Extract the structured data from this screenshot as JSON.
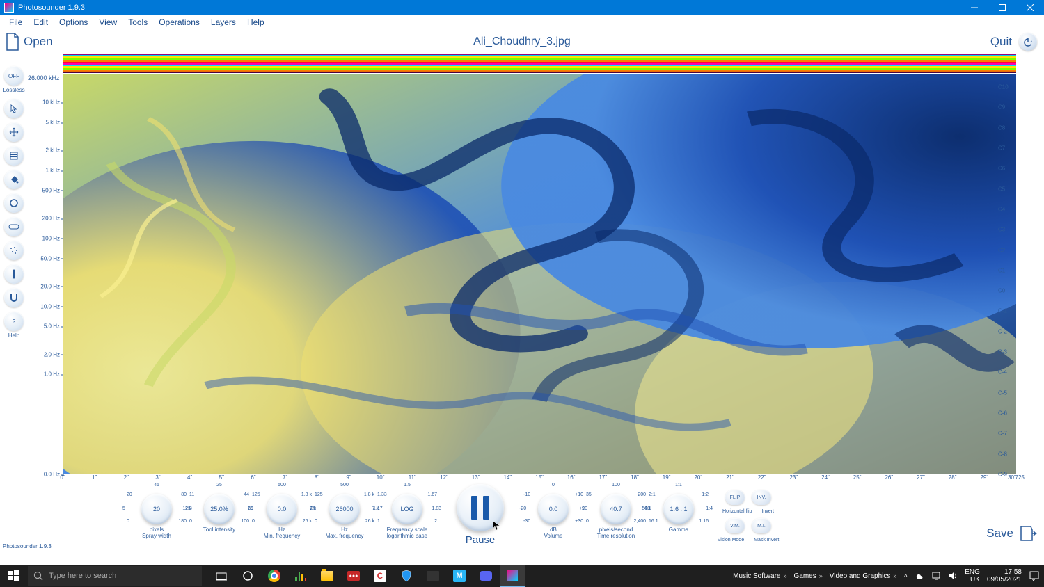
{
  "window": {
    "title": "Photosounder 1.9.3",
    "accent_color": "#0078d7"
  },
  "menu": [
    "File",
    "Edit",
    "Options",
    "View",
    "Tools",
    "Operations",
    "Layers",
    "Help"
  ],
  "topbar": {
    "open_label": "Open",
    "filename": "Ali_Choudhry_3.jpg",
    "quit_label": "Quit"
  },
  "left_tools": [
    {
      "id": "off",
      "label": "OFF",
      "sublabel": "Lossless"
    },
    {
      "id": "pointer",
      "icon": "pointer"
    },
    {
      "id": "move",
      "icon": "move"
    },
    {
      "id": "grid",
      "icon": "grid"
    },
    {
      "id": "fill",
      "icon": "fill"
    },
    {
      "id": "circle",
      "icon": "circle"
    },
    {
      "id": "erase",
      "icon": "erase"
    },
    {
      "id": "noise",
      "icon": "noise"
    },
    {
      "id": "line",
      "icon": "line"
    },
    {
      "id": "magnet",
      "icon": "magnet"
    },
    {
      "id": "help",
      "label": "?",
      "sublabel": "Help"
    }
  ],
  "freq_top_label": "26.000 kHz",
  "yaxis_left": [
    {
      "label": "10 kHz",
      "pct": 7
    },
    {
      "label": "5 kHz",
      "pct": 12
    },
    {
      "label": "2 kHz",
      "pct": 19
    },
    {
      "label": "1 kHz",
      "pct": 24
    },
    {
      "label": "500 Hz",
      "pct": 29
    },
    {
      "label": "200 Hz",
      "pct": 36
    },
    {
      "label": "100 Hz",
      "pct": 41
    },
    {
      "label": "50.0 Hz",
      "pct": 46
    },
    {
      "label": "20.0 Hz",
      "pct": 53
    },
    {
      "label": "10.0 Hz",
      "pct": 58
    },
    {
      "label": "5.0 Hz",
      "pct": 63
    },
    {
      "label": "2.0 Hz",
      "pct": 70
    },
    {
      "label": "1.0 Hz",
      "pct": 75
    },
    {
      "label": "0.0 Hz",
      "pct": 100
    }
  ],
  "yaxis_right": [
    "C10",
    "C9",
    "C8",
    "C7",
    "C6",
    "C5",
    "C4",
    "C3",
    "C2",
    "C1",
    "C0",
    "C-1",
    "C-2",
    "C-3",
    "C-4",
    "C-5",
    "C-6",
    "C-7",
    "C-8",
    "C-9"
  ],
  "xaxis": {
    "start": 0,
    "end_label": "30'725",
    "ticks": [
      "0\"",
      "1\"",
      "2\"",
      "3\"",
      "4\"",
      "5\"",
      "6\"",
      "7\"",
      "8\"",
      "9\"",
      "10\"",
      "11\"",
      "12\"",
      "13\"",
      "14\"",
      "15\"",
      "16\"",
      "17\"",
      "18\"",
      "19\"",
      "20\"",
      "21\"",
      "22\"",
      "23\"",
      "24\"",
      "25\"",
      "26\"",
      "27\"",
      "28\"",
      "29\""
    ]
  },
  "playhead_pct": 24,
  "knobs": [
    {
      "id": "spray",
      "value": "20",
      "subline1": "pixels",
      "subline2": "Spray width",
      "ticks": {
        "tl": "20",
        "t": "45",
        "tr": "80",
        "l": "5",
        "r": "125",
        "bl": "0",
        "br": "180"
      }
    },
    {
      "id": "tool-intensity",
      "value": "25.0%",
      "subline1": "",
      "subline2": "Tool intensity",
      "ticks": {
        "tl": "11",
        "t": "25",
        "tr": "44",
        "l": "2.8",
        "r": "69",
        "bl": "0",
        "br": "100"
      }
    },
    {
      "id": "min-freq",
      "value": "0.0",
      "subline1": "Hz",
      "subline2": "Min. frequency",
      "ticks": {
        "tl": "125",
        "t": "500",
        "tr": "1.8 k",
        "l": "25",
        "r": "7 k",
        "bl": "0",
        "br": "26 k"
      }
    },
    {
      "id": "max-freq",
      "value": "26000",
      "subline1": "Hz",
      "subline2": "Max. frequency",
      "ticks": {
        "tl": "125",
        "t": "500",
        "tr": "1.8 k",
        "l": "25",
        "r": "7 k",
        "bl": "0",
        "br": "26 k"
      }
    },
    {
      "id": "freq-scale",
      "value": "LOG",
      "subline1": "Frequency scale",
      "subline2": "logarithmic base",
      "ticks": {
        "tl": "1.33",
        "t": "1.5",
        "tr": "1.67",
        "l": "1.17",
        "r": "1.83",
        "bl": "1",
        "br": "2"
      }
    }
  ],
  "knobs_right": [
    {
      "id": "volume",
      "value": "0.0",
      "subline1": "dB",
      "subline2": "Volume",
      "ticks": {
        "tl": "-10",
        "t": "0",
        "tr": "+10",
        "l": "-20",
        "r": "+20",
        "bl": "-30",
        "br": "+30"
      }
    },
    {
      "id": "time-res",
      "value": "40.7",
      "subline1": "pixels/second",
      "subline2": "Time resolution",
      "ticks": {
        "tl": "35",
        "t": "100",
        "tr": "200",
        "l": "9",
        "r": "500",
        "bl": "0",
        "br": "2,400"
      }
    },
    {
      "id": "gamma",
      "value": "1.6 : 1",
      "subline1": "",
      "subline2": "Gamma",
      "ticks": {
        "tl": "2:1",
        "t": "1:1",
        "tr": "1:2",
        "l": "4:1",
        "r": "1:4",
        "bl": "16:1",
        "br": "1:16"
      }
    }
  ],
  "play": {
    "label": "Pause"
  },
  "toggles": {
    "flip": "FLIP",
    "flip_label": "Horizontal flip",
    "inv": "INV.",
    "inv_label": "Invert",
    "vm": "V.M.",
    "vm_label": "Vision Mode",
    "mi": "M.I.",
    "mi_label": "Mask Invert"
  },
  "save_label": "Save",
  "status_text": "Photosounder 1.9.3",
  "taskbar": {
    "search_placeholder": "Type here to search",
    "groups": [
      "Music Software",
      "Games",
      "Video and Graphics"
    ],
    "lang1": "ENG",
    "lang2": "UK",
    "time": "17:58",
    "date": "09/05/2021"
  },
  "colors": {
    "spectro_bg_dark": "#0a2a6a",
    "spectro_bg_mid": "#1e50b4",
    "spectro_bg_light": "#4a8ae0",
    "spectro_yellow": "#f0e070",
    "spectro_yellow_bright": "#faf090"
  }
}
